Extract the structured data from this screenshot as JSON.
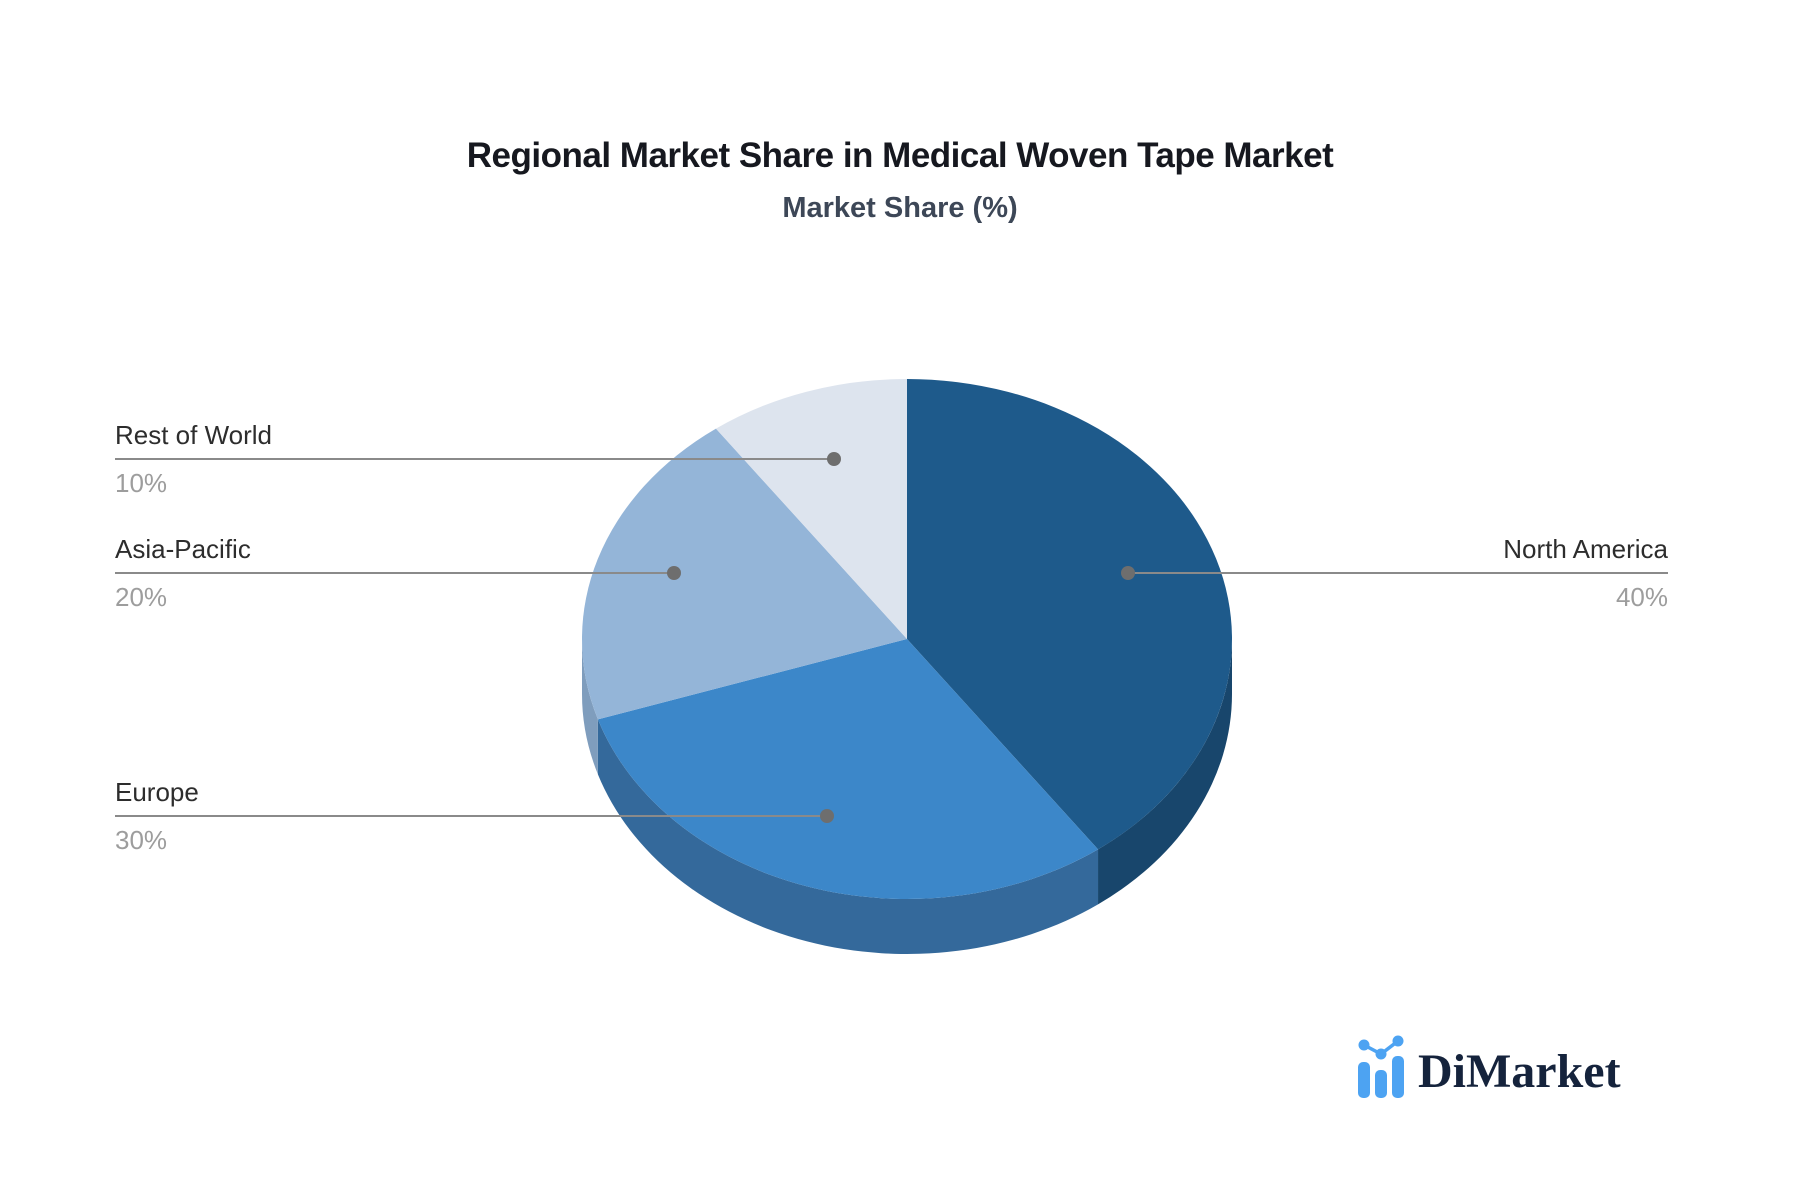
{
  "header": {
    "title": "Regional Market Share in Medical Woven Tape Market",
    "subtitle": "Market Share (%)"
  },
  "logo": {
    "text": "DiMarket",
    "icon": "bar-line-chart-icon",
    "icon_color": "#4da3f2",
    "text_color": "#15233c"
  },
  "colors": {
    "background": "#ffffff",
    "title_text": "#16181f",
    "subtitle_text": "#3d4757",
    "callout_line": "#8a8a8a",
    "callout_dot": "#6e6e6e",
    "label_text": "#2d2d2d",
    "percent_text": "#9d9d9d"
  },
  "chart_data": {
    "type": "pie",
    "style": "3d",
    "title": "Regional Market Share in Medical Woven Tape Market",
    "subtitle": "Market Share (%)",
    "unit": "%",
    "direction": "clockwise",
    "start_angle_deg": 0,
    "legend_position": "callout-labels",
    "categories": [
      "North America",
      "Europe",
      "Asia-Pacific",
      "Rest of World"
    ],
    "values": [
      40,
      30,
      20,
      10
    ],
    "slices": [
      {
        "label": "North America",
        "value": 40,
        "value_label": "40%",
        "color": "#1e5a8b",
        "side_color": "#18466c",
        "callout_side": "right"
      },
      {
        "label": "Europe",
        "value": 30,
        "value_label": "30%",
        "color": "#3c87c9",
        "side_color": "#34699b",
        "callout_side": "left"
      },
      {
        "label": "Asia-Pacific",
        "value": 20,
        "value_label": "20%",
        "color": "#94b5d8",
        "side_color": "#7f9dbd",
        "callout_side": "left"
      },
      {
        "label": "Rest of World",
        "value": 10,
        "value_label": "10%",
        "color": "#dde4ee",
        "side_color": "#c2cddd",
        "callout_side": "left"
      }
    ]
  }
}
